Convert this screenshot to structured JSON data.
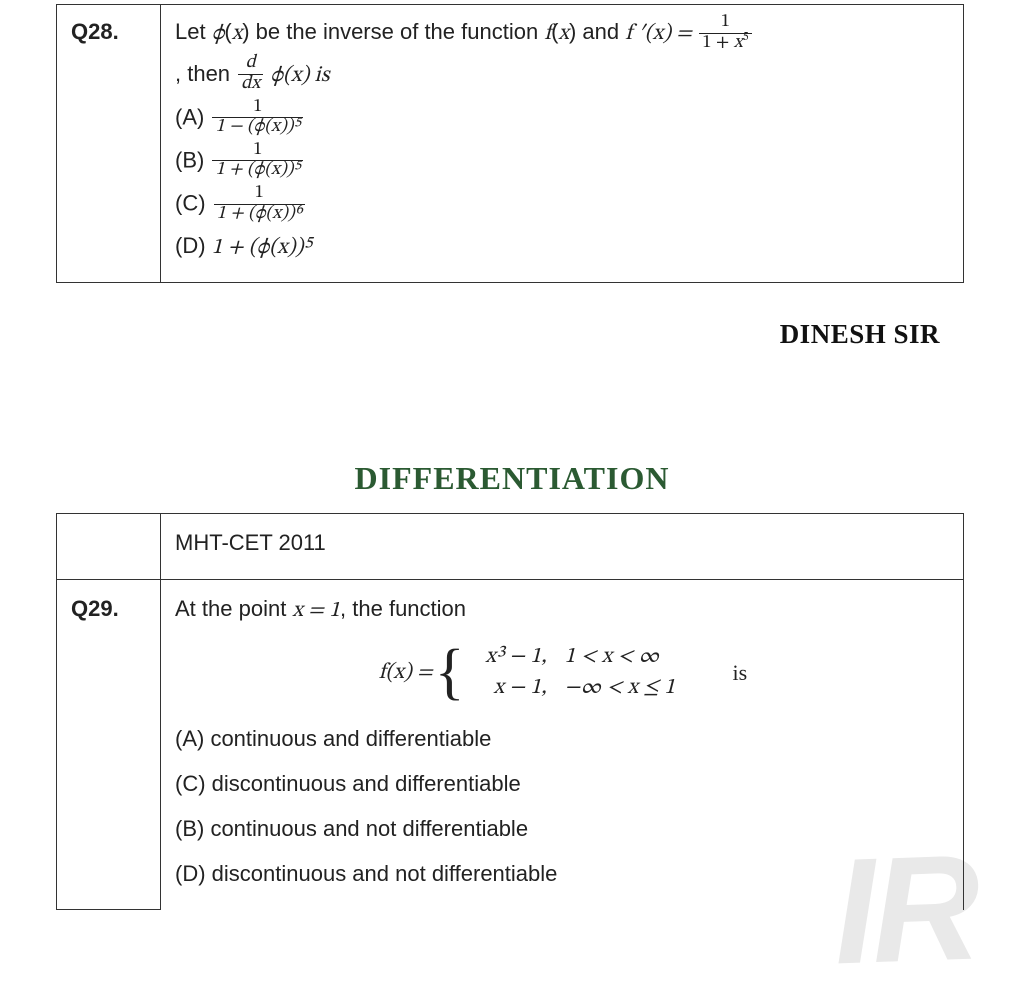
{
  "q28": {
    "num": "Q28.",
    "stem_a": "Let ",
    "phi": "ϕ",
    "x": "x",
    "stem_b": " be the inverse of the function ",
    "f": "f",
    "stem_c": " and ",
    "fprime": "f ′(x) = ",
    "frac1_num": "1",
    "frac1_den_a": "1 + ",
    "frac1_den_b": "x",
    "frac1_den_exp": "5",
    "line2_a": ", then ",
    "ddx_num": "d",
    "ddx_den": "dx",
    "line2_b": " ϕ(x) is",
    "optA_label": "(A) ",
    "optA_num": "1",
    "optA_den": "1 − (ϕ(x))⁵",
    "optB_label": "(B) ",
    "optB_num": "1",
    "optB_den": "1 + (ϕ(x))⁵",
    "optC_label": "(C) ",
    "optC_num": "1",
    "optC_den": "1 + (ϕ(x))⁶",
    "optD_label": "(D) ",
    "optD_text": "1 + (ϕ(x))⁵"
  },
  "dinesh": "DINESH SIR",
  "chapter": "DIFFERENTIATION",
  "year_header": "MHT-CET 2011",
  "q29": {
    "num": "Q29.",
    "stem_a": "At the point ",
    "x1": "x = 1",
    "stem_b": ", the function",
    "pw_lhs": "f(x) = ",
    "pw1_expr": "x³ − 1,",
    "pw1_cond": "1 < x < ∞",
    "pw2_expr": "x − 1,",
    "pw2_cond": "−∞ < x ≤ 1",
    "is": "is",
    "optA": "(A) continuous and differentiable",
    "optC": "(C) discontinuous and differentiable",
    "optB": "(B) continuous and not differentiable",
    "optD": "(D) discontinuous and not differentiable"
  },
  "watermark": "IR"
}
